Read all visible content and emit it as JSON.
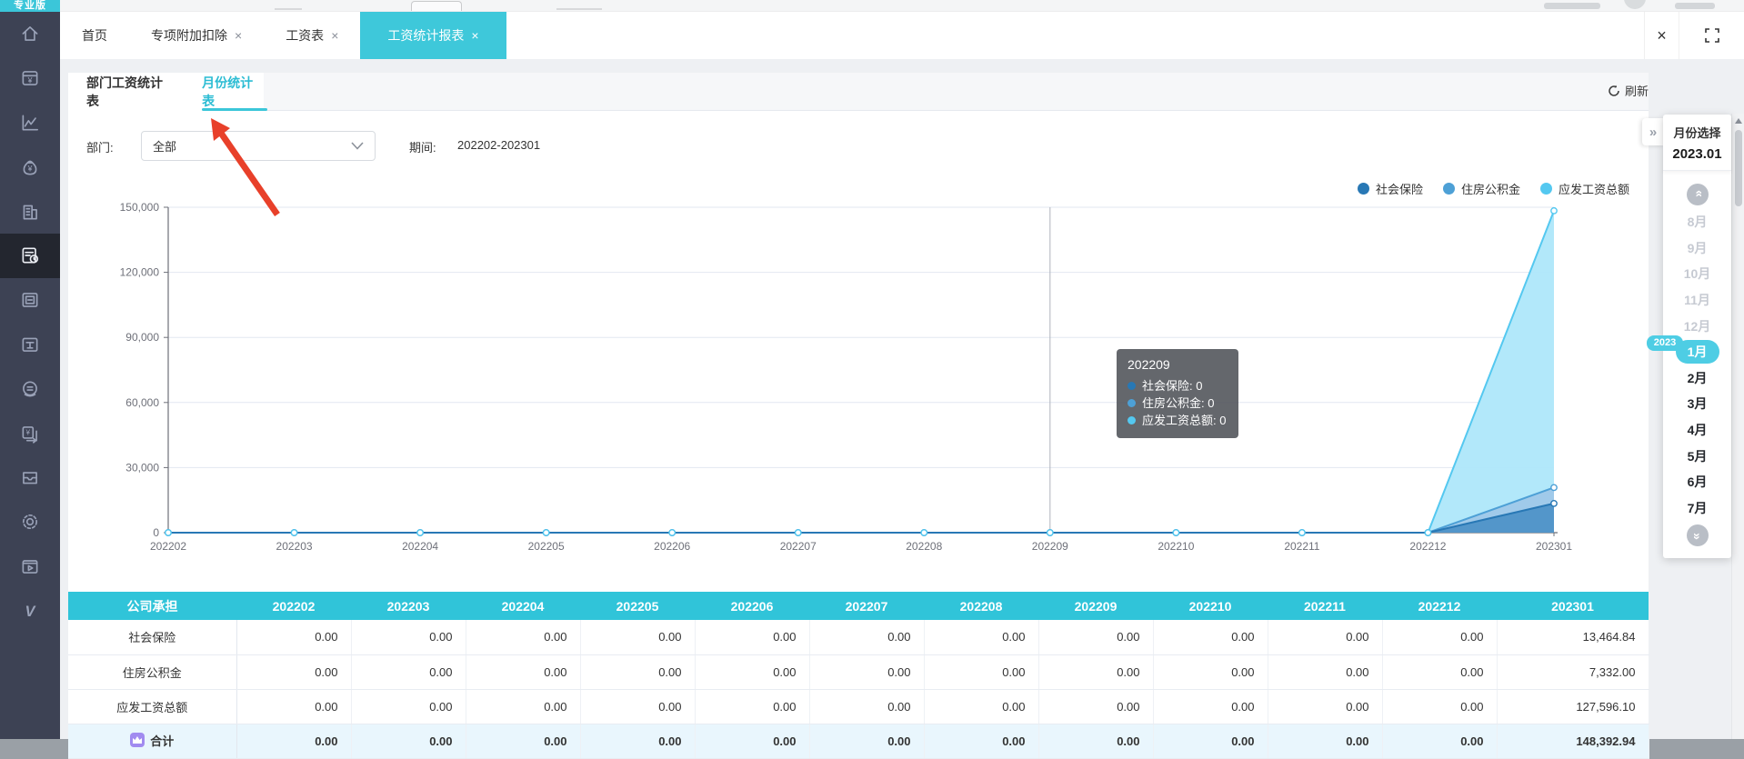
{
  "app": {
    "edition_badge": "专业版",
    "close_glyph": "×",
    "nav_tabs": [
      {
        "label": "首页",
        "closable": false,
        "active": false
      },
      {
        "label": "专项附加扣除",
        "closable": true,
        "active": false
      },
      {
        "label": "工资表",
        "closable": true,
        "active": false
      },
      {
        "label": "工资统计报表",
        "closable": true,
        "active": true
      }
    ]
  },
  "sidebar": {
    "icons": [
      "home",
      "invoice",
      "report-chart",
      "money-bag",
      "company",
      "salary-report",
      "cash-machine",
      "tax-card",
      "seal",
      "voucher-transfer",
      "archive",
      "settings",
      "tutorial-video",
      "logo-v"
    ],
    "active_icon": "salary-report"
  },
  "subtabs": {
    "tabs": [
      {
        "label": "部门工资统计表",
        "active": false
      },
      {
        "label": "月份统计表",
        "active": true
      }
    ],
    "refresh_label": "刷新"
  },
  "filters": {
    "department_label": "部门:",
    "department_value": "全部",
    "period_label": "期间:",
    "period_value": "202202-202301"
  },
  "chart_data": {
    "type": "area",
    "stacked": true,
    "x": [
      "202202",
      "202203",
      "202204",
      "202205",
      "202206",
      "202207",
      "202208",
      "202209",
      "202210",
      "202211",
      "202212",
      "202301"
    ],
    "series": [
      {
        "name": "社会保险",
        "color": "#2878b5",
        "fill": "#4f92c8",
        "values": [
          0,
          0,
          0,
          0,
          0,
          0,
          0,
          0,
          0,
          0,
          0,
          13464.84
        ]
      },
      {
        "name": "住房公积金",
        "color": "#4da0d6",
        "fill": "#9fc8e9",
        "values": [
          0,
          0,
          0,
          0,
          0,
          0,
          0,
          0,
          0,
          0,
          0,
          7332.0
        ]
      },
      {
        "name": "应发工资总额",
        "color": "#54c8f0",
        "fill": "#aee7fa",
        "values": [
          0,
          0,
          0,
          0,
          0,
          0,
          0,
          0,
          0,
          0,
          0,
          127596.1
        ]
      }
    ],
    "ylim": [
      0,
      150000
    ],
    "yticks": [
      "0",
      "30,000",
      "60,000",
      "90,000",
      "120,000",
      "150,000"
    ],
    "grid": true,
    "legend_position": "top-right",
    "hover_x": "202209"
  },
  "tooltip": {
    "title": "202209",
    "rows": [
      {
        "label": "社会保险",
        "value": "0",
        "color": "#2878b5"
      },
      {
        "label": "住房公积金",
        "value": "0",
        "color": "#4da0d6"
      },
      {
        "label": "应发工资总额",
        "value": "0",
        "color": "#54c8f0"
      }
    ]
  },
  "month_panel": {
    "collapse_glyph": "»",
    "title": "月份选择",
    "current_period": "2023.01",
    "year_badge": "2023",
    "months": [
      {
        "label": "8月",
        "state": "disabled"
      },
      {
        "label": "9月",
        "state": "disabled"
      },
      {
        "label": "10月",
        "state": "disabled"
      },
      {
        "label": "11月",
        "state": "disabled"
      },
      {
        "label": "12月",
        "state": "disabled"
      },
      {
        "label": "1月",
        "state": "selected"
      },
      {
        "label": "2月",
        "state": "normal"
      },
      {
        "label": "3月",
        "state": "normal"
      },
      {
        "label": "4月",
        "state": "normal"
      },
      {
        "label": "5月",
        "state": "normal"
      },
      {
        "label": "6月",
        "state": "normal"
      },
      {
        "label": "7月",
        "state": "normal"
      }
    ]
  },
  "table": {
    "columns": [
      "公司承担",
      "202202",
      "202203",
      "202204",
      "202205",
      "202206",
      "202207",
      "202208",
      "202209",
      "202210",
      "202211",
      "202212",
      "202301"
    ],
    "rows": [
      {
        "label": "社会保险",
        "total": false,
        "values": [
          "0.00",
          "0.00",
          "0.00",
          "0.00",
          "0.00",
          "0.00",
          "0.00",
          "0.00",
          "0.00",
          "0.00",
          "0.00",
          "13,464.84"
        ]
      },
      {
        "label": "住房公积金",
        "total": false,
        "values": [
          "0.00",
          "0.00",
          "0.00",
          "0.00",
          "0.00",
          "0.00",
          "0.00",
          "0.00",
          "0.00",
          "0.00",
          "0.00",
          "7,332.00"
        ]
      },
      {
        "label": "应发工资总额",
        "total": false,
        "values": [
          "0.00",
          "0.00",
          "0.00",
          "0.00",
          "0.00",
          "0.00",
          "0.00",
          "0.00",
          "0.00",
          "0.00",
          "0.00",
          "127,596.10"
        ]
      },
      {
        "label": "合计",
        "total": true,
        "values": [
          "0.00",
          "0.00",
          "0.00",
          "0.00",
          "0.00",
          "0.00",
          "0.00",
          "0.00",
          "0.00",
          "0.00",
          "0.00",
          "148,392.94"
        ]
      }
    ]
  },
  "colors": {
    "accent": "#3bc6d9",
    "table_header": "#30c4d9",
    "month_pill": "#4ecde4",
    "sidebar_bg": "#3d4254",
    "annotation_red": "#e8402a"
  }
}
